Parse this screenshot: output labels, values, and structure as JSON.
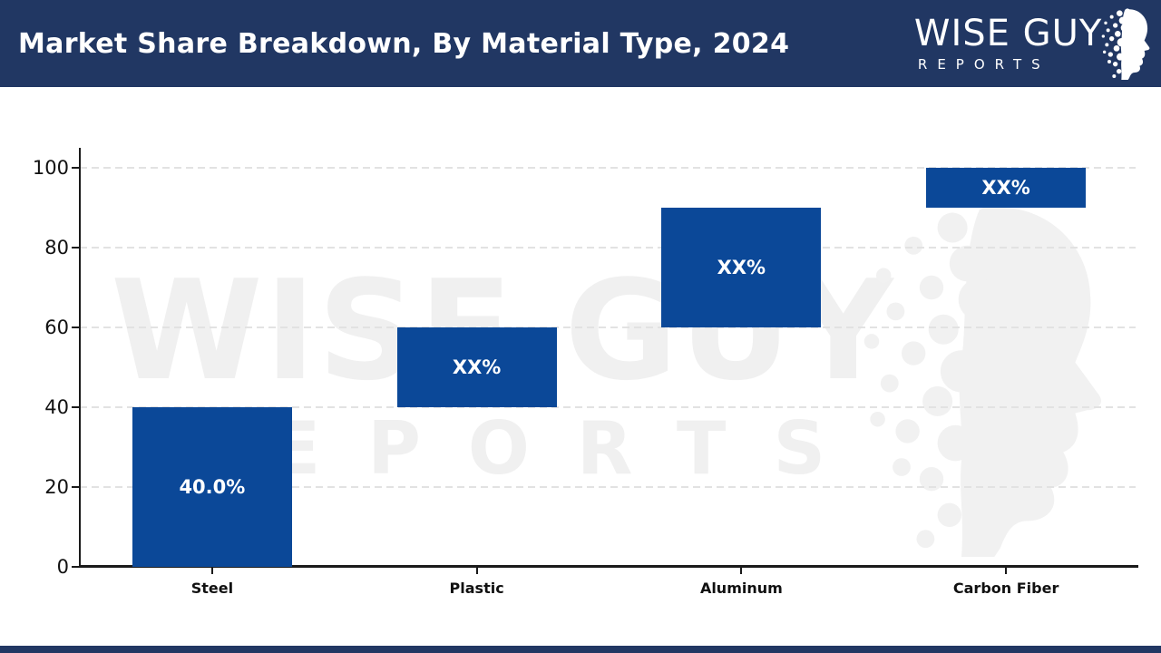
{
  "header": {
    "title": "Market Share Breakdown, By Material Type, 2024",
    "logo": {
      "line1": "WISE GUY",
      "line2": "REPORTS"
    }
  },
  "watermark": {
    "line1": "WISE GUY",
    "line2": "REPORTS"
  },
  "colors": {
    "header_bg": "#213763",
    "footer_bg": "#213763",
    "bar": "#0b4898",
    "bar_label": "#ffffff",
    "grid": "#e2e2e2",
    "axis": "#1a1a1a",
    "watermark": "#f0f0f0"
  },
  "chart_data": {
    "type": "bar",
    "subtype": "waterfall-floating-bars",
    "title": "Market Share Breakdown, By Material Type, 2024",
    "xlabel": "",
    "ylabel": "",
    "categories": [
      "Steel",
      "Plastic",
      "Aluminum",
      "Carbon Fiber"
    ],
    "series": [
      {
        "name": "Market Share (%)",
        "segments": [
          {
            "category": "Steel",
            "start": 0,
            "end": 40,
            "label": "40.0%"
          },
          {
            "category": "Plastic",
            "start": 40,
            "end": 60,
            "label": "XX%"
          },
          {
            "category": "Aluminum",
            "start": 60,
            "end": 90,
            "label": "XX%"
          },
          {
            "category": "Carbon Fiber",
            "start": 90,
            "end": 100,
            "label": "XX%"
          }
        ]
      }
    ],
    "yticks": [
      0,
      20,
      40,
      60,
      80,
      100
    ],
    "ylim": [
      0,
      105
    ],
    "grid": "horizontal-dashed",
    "legend": "none"
  }
}
